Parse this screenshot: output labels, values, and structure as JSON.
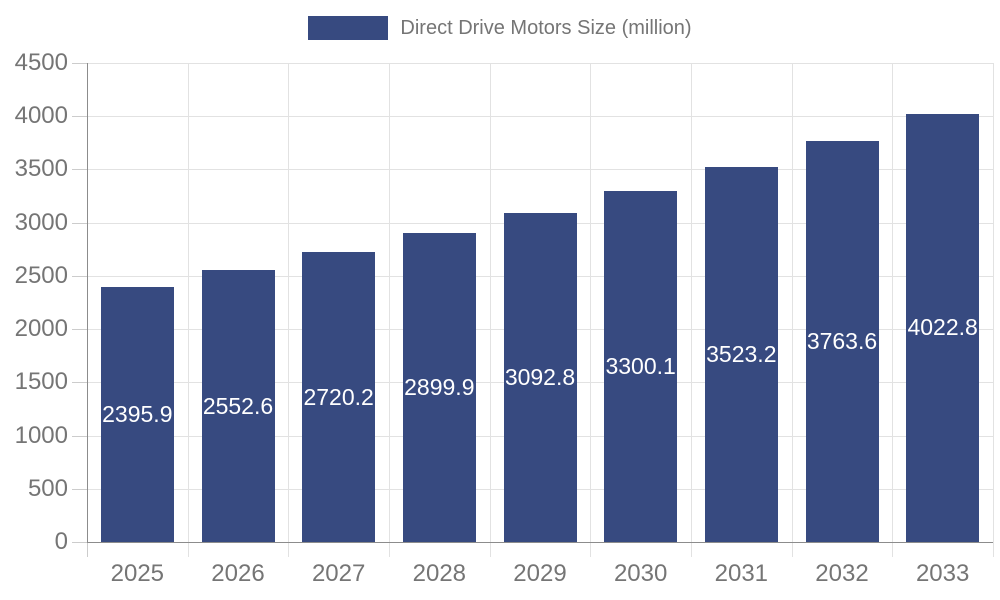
{
  "legend": {
    "label": "Direct Drive Motors Size (million)"
  },
  "chart_data": {
    "type": "bar",
    "title": "Direct Drive Motors Size (million)",
    "categories": [
      "2025",
      "2026",
      "2027",
      "2028",
      "2029",
      "2030",
      "2031",
      "2032",
      "2033"
    ],
    "values": [
      2395.9,
      2552.6,
      2720.2,
      2899.9,
      3092.8,
      3300.1,
      3523.2,
      3763.6,
      4022.8
    ],
    "xlabel": "",
    "ylabel": "",
    "ylim": [
      0,
      4500
    ],
    "yticks": [
      0,
      500,
      1000,
      1500,
      2000,
      2500,
      3000,
      3500,
      4000,
      4500
    ],
    "grid": true,
    "legend_position": "top",
    "value_labels_inside_bars": true,
    "colors": {
      "bar": "#374A80",
      "value_label": "#FFFFFF",
      "axis_text": "#757575",
      "gridline": "#E2E2E2",
      "tick": "#CCCCCC",
      "axis_line": "#8C8C8C",
      "background": "#FFFFFF"
    }
  }
}
